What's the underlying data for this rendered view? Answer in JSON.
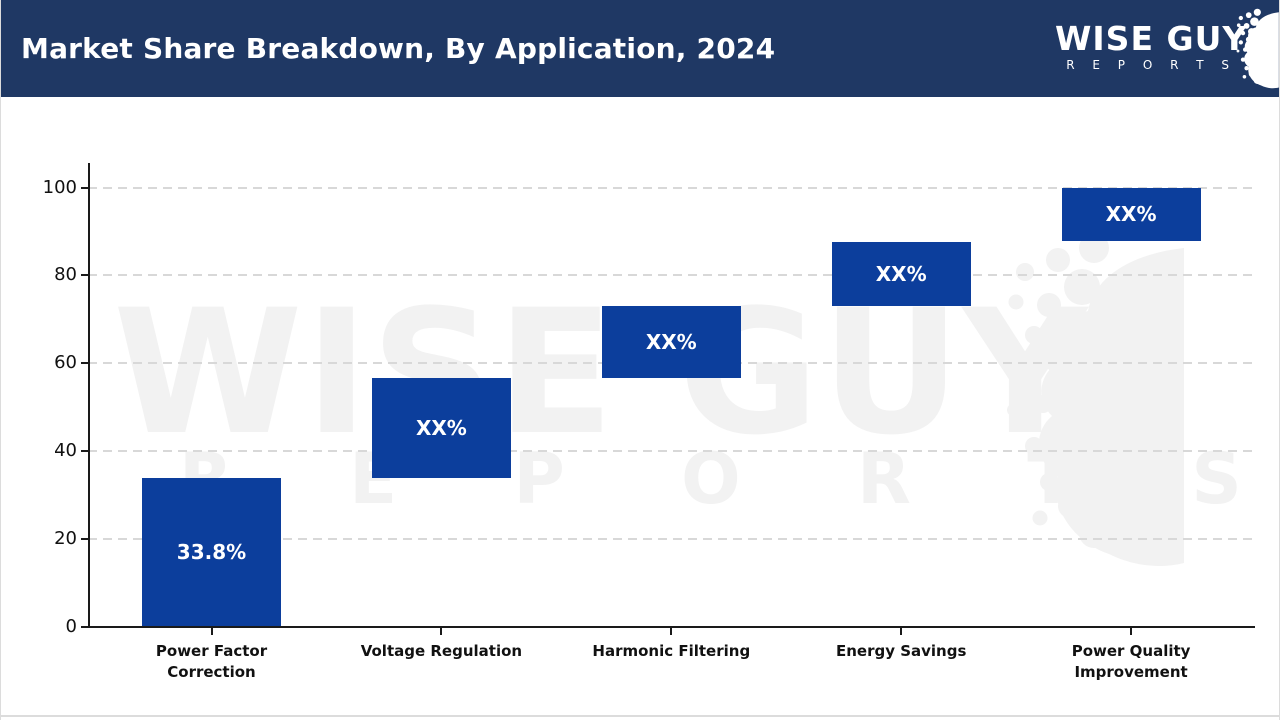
{
  "header": {
    "title": "Market Share Breakdown, By Application, 2024",
    "logo": {
      "name": "WISE GUY",
      "tagline": "R E P O R T S"
    }
  },
  "watermark": {
    "name": "WISE GUY",
    "tagline": "R E P O R T S"
  },
  "chart_data": {
    "type": "bar",
    "subtype": "waterfall",
    "title": "Market Share Breakdown, By Application, 2024",
    "categories": [
      "Power Factor Correction",
      "Voltage Regulation",
      "Harmonic Filtering",
      "Energy Savings",
      "Power Quality Improvement"
    ],
    "category_lines": [
      [
        "Power Factor",
        "Correction"
      ],
      [
        "Voltage Regulation"
      ],
      [
        "Harmonic Filtering"
      ],
      [
        "Energy Savings"
      ],
      [
        "Power Quality",
        "Improvement"
      ]
    ],
    "segments": [
      {
        "category": "Power Factor Correction",
        "start": 0,
        "end": 33.8,
        "label": "33.8%"
      },
      {
        "category": "Voltage Regulation",
        "start": 33.8,
        "end": 56.6,
        "label": "XX%"
      },
      {
        "category": "Harmonic Filtering",
        "start": 56.6,
        "end": 73.1,
        "label": "XX%"
      },
      {
        "category": "Energy Savings",
        "start": 73.1,
        "end": 87.5,
        "label": "XX%"
      },
      {
        "category": "Power Quality Improvement",
        "start": 87.7,
        "end": 100,
        "label": "XX%"
      }
    ],
    "xlabel": "",
    "ylabel": "",
    "yticks": [
      0,
      20,
      40,
      60,
      80,
      100
    ],
    "ylim": [
      0,
      105
    ],
    "grid": "horizontal-dashed",
    "legend": "none",
    "bar_color": "#0c3e9c",
    "bar_label_color": "#ffffff",
    "axis_color": "#1a1a1a",
    "gridline_color": "#d8d8d8"
  },
  "colors": {
    "header_bg": "#1f3864",
    "watermark": "#f2f2f2"
  }
}
